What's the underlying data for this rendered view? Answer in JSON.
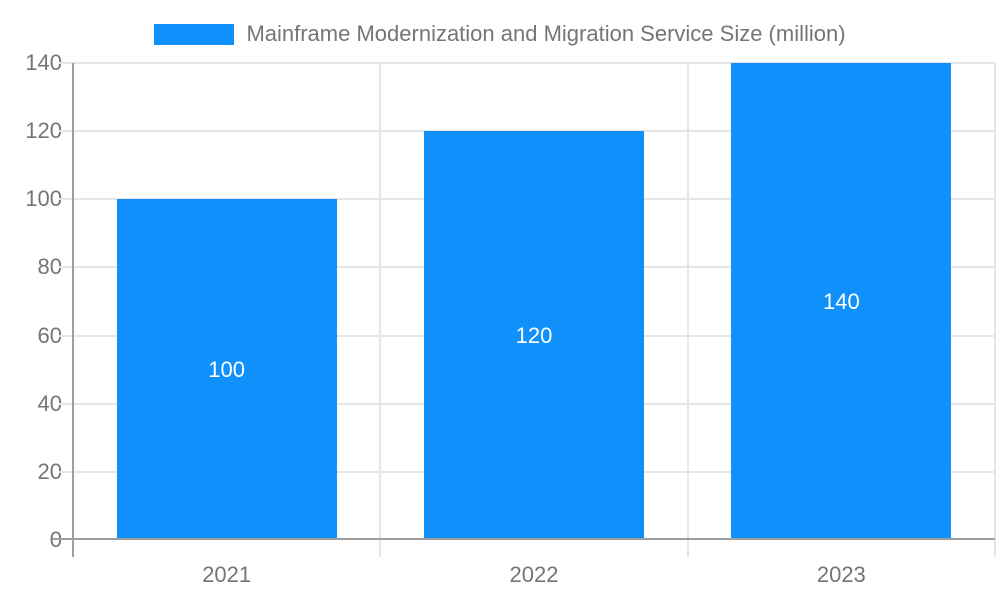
{
  "chart_data": {
    "type": "bar",
    "categories": [
      "2021",
      "2022",
      "2023"
    ],
    "series": [
      {
        "name": "Mainframe Modernization and Migration Service Size (million)",
        "values": [
          100,
          120,
          140
        ]
      }
    ],
    "bar_value_labels": [
      "100",
      "120",
      "140"
    ],
    "ytick_labels": [
      "0",
      "20",
      "40",
      "60",
      "80",
      "100",
      "120",
      "140"
    ],
    "yticks": [
      0,
      20,
      40,
      60,
      80,
      100,
      120,
      140
    ],
    "ylim": [
      0,
      140
    ],
    "xlabel": "",
    "ylabel": "",
    "grid": true,
    "legend_position": "top"
  },
  "colors": {
    "bar": "#0f90fa",
    "gridline": "#e6e6e6",
    "axis": "#9e9e9e",
    "tick_text": "#757575",
    "bar_label_text": "#ffffff",
    "background": "#ffffff"
  }
}
